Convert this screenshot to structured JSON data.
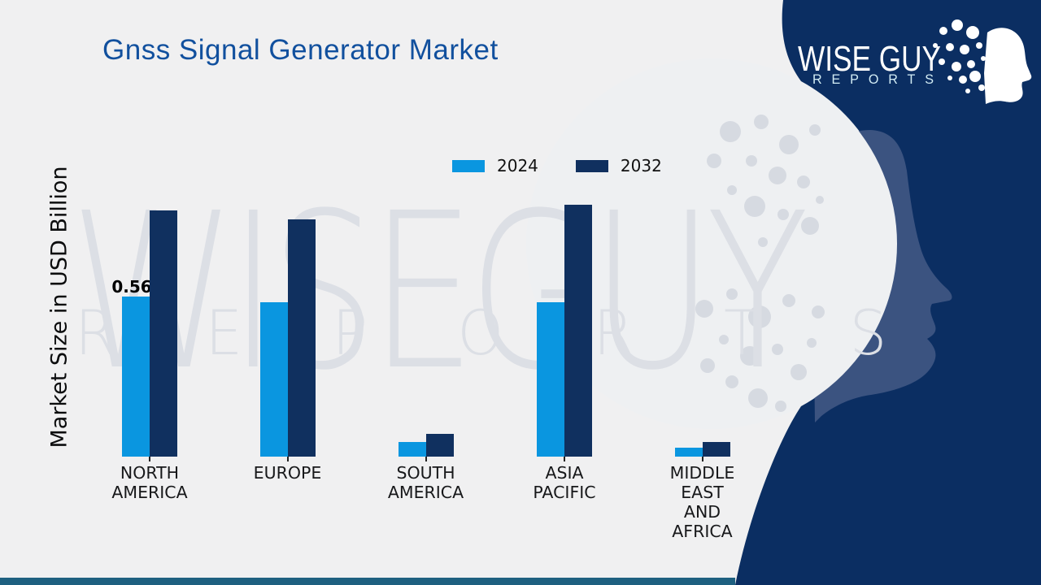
{
  "title": "Gnss Signal Generator Market",
  "brand": {
    "name": "WISE GUY",
    "subtitle": "REPORTS"
  },
  "watermark": {
    "line1": "WISEGUY",
    "line2": "R E P O R T S"
  },
  "colors": {
    "series_2024": "#0a96e0",
    "series_2032": "#10305f",
    "title_blue": "#11509e",
    "right_panel_navy": "#0b2e62",
    "head_silhouette": "#3b5380",
    "background_circle": "#eef0f2",
    "decor_dots": "#d6dae1",
    "bottom_bar_teal": "#1e6080",
    "page_background": "#f0f0f1",
    "watermark_gray": "#dcdfe5",
    "label_black": "#17181a"
  },
  "chart_data": {
    "type": "bar",
    "title": "Gnss Signal Generator Market",
    "xlabel": "",
    "ylabel": "Market Size in USD Billion",
    "units": "USD Billion",
    "categories": [
      "NORTH AMERICA",
      "EUROPE",
      "SOUTH AMERICA",
      "ASIA PACIFIC",
      "MIDDLE EAST AND AFRICA"
    ],
    "series": [
      {
        "name": "2024",
        "color": "#0a96e0",
        "values": [
          0.56,
          0.54,
          0.05,
          0.54,
          0.03
        ],
        "value_labels": [
          "0.56",
          "",
          "",
          "",
          ""
        ]
      },
      {
        "name": "2032",
        "color": "#10305f",
        "values": [
          0.86,
          0.83,
          0.08,
          0.88,
          0.05
        ],
        "value_labels": [
          "",
          "",
          "",
          "",
          ""
        ]
      }
    ],
    "legend_position": "top-center",
    "grid": false,
    "ylim": [
      0,
      1
    ],
    "y_axis_ticks_visible": false
  }
}
